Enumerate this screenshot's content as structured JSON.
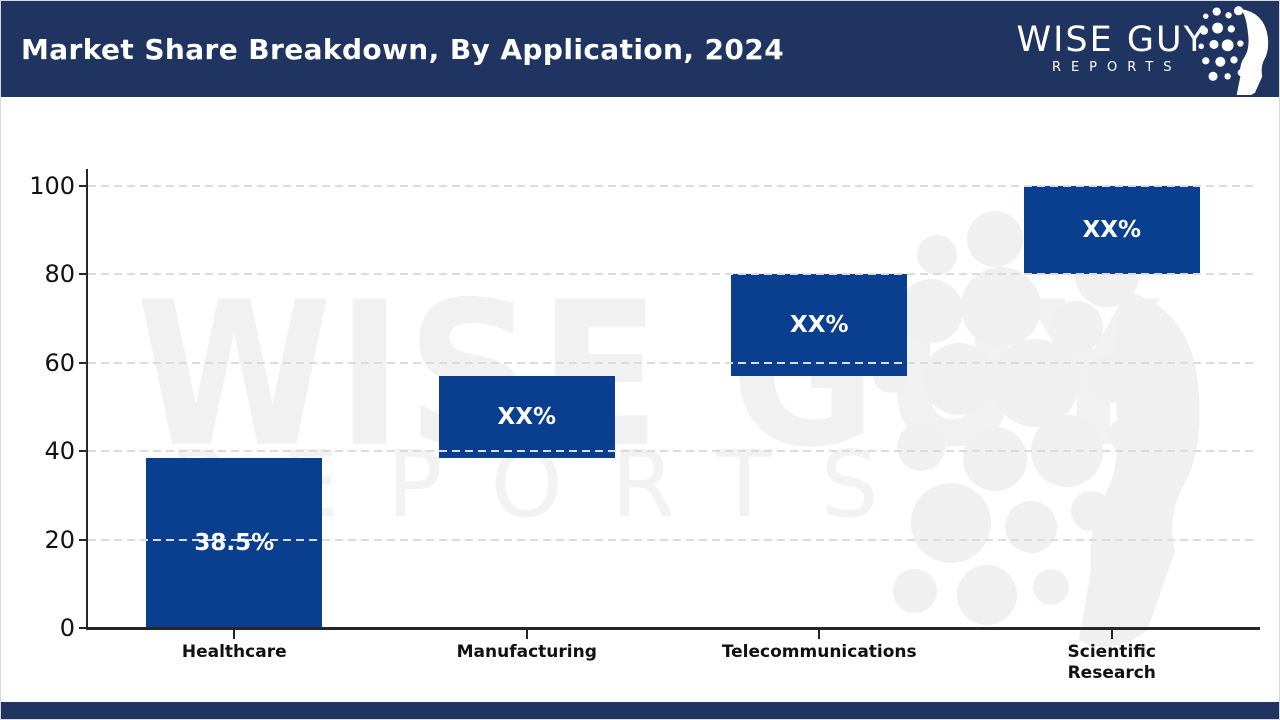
{
  "header": {
    "title": "Market Share Breakdown, By Application, 2024",
    "logo_line1": "WISE GUY",
    "logo_line2": "REPORTS",
    "bg_color": "#1f3460",
    "text_color": "#ffffff"
  },
  "watermark": {
    "line1": "WISE GUY",
    "line2": "REPORTS"
  },
  "chart_data": {
    "type": "bar",
    "subtype": "waterfall",
    "title": "Market Share Breakdown, By Application, 2024",
    "categories": [
      "Healthcare",
      "Manufacturing",
      "Telecommunications",
      "Scientific Research"
    ],
    "category_label_lines": [
      [
        "Healthcare"
      ],
      [
        "Manufacturing"
      ],
      [
        "Telecommunications"
      ],
      [
        "Scientific",
        "Research"
      ]
    ],
    "segments": [
      {
        "category": "Healthcare",
        "start": 0,
        "end": 38.5,
        "label": "38.5%"
      },
      {
        "category": "Manufacturing",
        "start": 38.5,
        "end": 57,
        "label": "XX%"
      },
      {
        "category": "Telecommunications",
        "start": 57,
        "end": 80,
        "label": "XX%"
      },
      {
        "category": "Scientific Research",
        "start": 80,
        "end": 100,
        "label": "XX%"
      }
    ],
    "xlabel": "",
    "ylabel": "",
    "ylim": [
      0,
      100
    ],
    "yticks": [
      0,
      20,
      40,
      60,
      80,
      100
    ],
    "grid": "horizontal-dashed",
    "legend": "none",
    "bar_color": "#0a3f90",
    "bar_label_color": "#ffffff",
    "gridline_color": "#dcdcdc",
    "axis_color": "#262626"
  },
  "footer": {
    "bg_color": "#1f3460"
  }
}
